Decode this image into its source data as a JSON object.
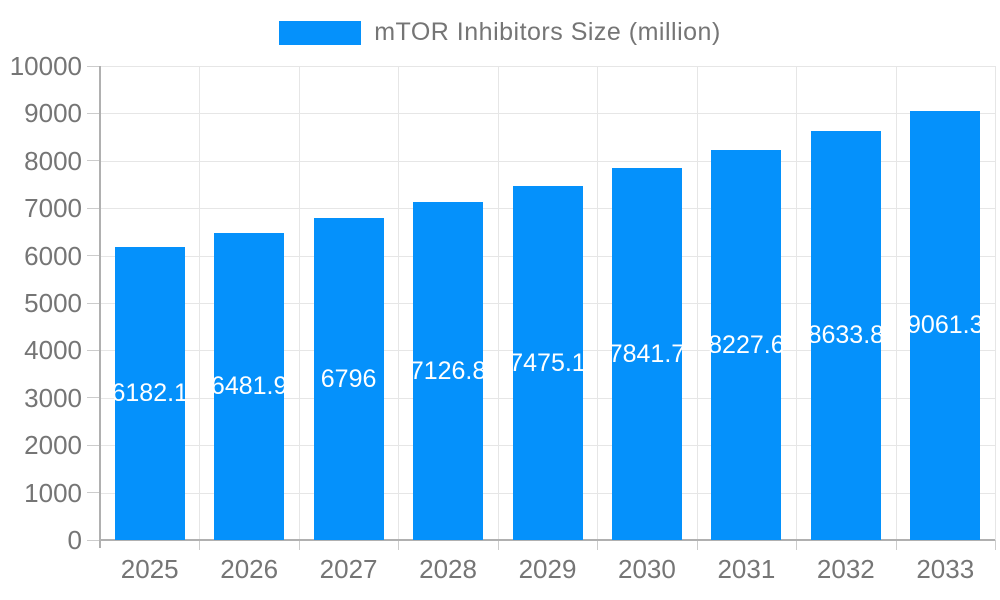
{
  "legend": {
    "label": "mTOR Inhibitors Size (million)",
    "swatch_color": "#0591fb"
  },
  "chart_data": {
    "type": "bar",
    "title": "mTOR Inhibitors Size (million)",
    "categories": [
      "2025",
      "2026",
      "2027",
      "2028",
      "2029",
      "2030",
      "2031",
      "2032",
      "2033"
    ],
    "values": [
      6182.1,
      6481.9,
      6796,
      7126.8,
      7475.1,
      7841.7,
      8227.6,
      8633.8,
      9061.3
    ],
    "bar_labels": [
      "6182.1",
      "6481.9",
      "6796",
      "7126.8",
      "7475.1",
      "7841.7",
      "8227.6",
      "8633.8",
      "9061.3"
    ],
    "xlabel": "",
    "ylabel": "",
    "ylim": [
      0,
      10000
    ],
    "yticks": [
      0,
      1000,
      2000,
      3000,
      4000,
      5000,
      6000,
      7000,
      8000,
      9000,
      10000
    ],
    "grid": true,
    "legend_position": "top",
    "colors": {
      "bar": "#0591fb",
      "gridline": "#e6e6e6",
      "axis_line": "#b0b0b0",
      "tick": "#cccccc",
      "axis_text": "#757575",
      "bar_label_text": "#ffffff",
      "background": "#ffffff"
    }
  }
}
